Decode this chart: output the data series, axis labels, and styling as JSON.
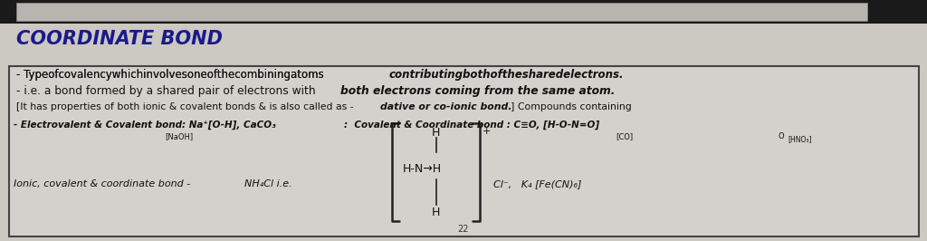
{
  "title": "COORDINATE BOND",
  "title_color": "#1a1a8c",
  "outer_bg": "#d4d0cc",
  "inner_bg": "#e8e4e0",
  "inner_edge": "#555555",
  "text_color": "#111111",
  "top_bar_color": "#1a1a1a",
  "line1_normal": "- Typeofcovalencywhichinvolvesoneofthecombiningatoms",
  "line1_bold": "contributingbothofthesharedelectrons.",
  "line2_normal": "- i.e. a bond formed by a shared pair of electrons with ",
  "line2_bold": "both electrons coming from the same atom.",
  "line3_normal1": "[It has properties of both ionic & covalent bonds & is also called as - ",
  "line3_bold": "dative or co-ionic bond.",
  "line3_normal2": "] Compounds containing",
  "line4a": "- Electrovalent & Covalent bond: Na⁺[O-H], CaCO₃",
  "line4b": ":  Covalent & Coordinate bond : C≡O, [H-O-N=O]",
  "sub_naoh": "[NaOH]",
  "sub_co": "[CO]",
  "sub_hno3": "O  [HNO₃]",
  "line5a": "Ionic, covalent & coordinate bond -",
  "line5b": "NH₄Cl i.e.",
  "line5c": "Cl⁻,   K₄ [Fe(CN)₆]",
  "nh4_H_top": "H",
  "nh4_mid": "H-N→H",
  "nh4_H_bot": "H",
  "nh4_plus": "+"
}
